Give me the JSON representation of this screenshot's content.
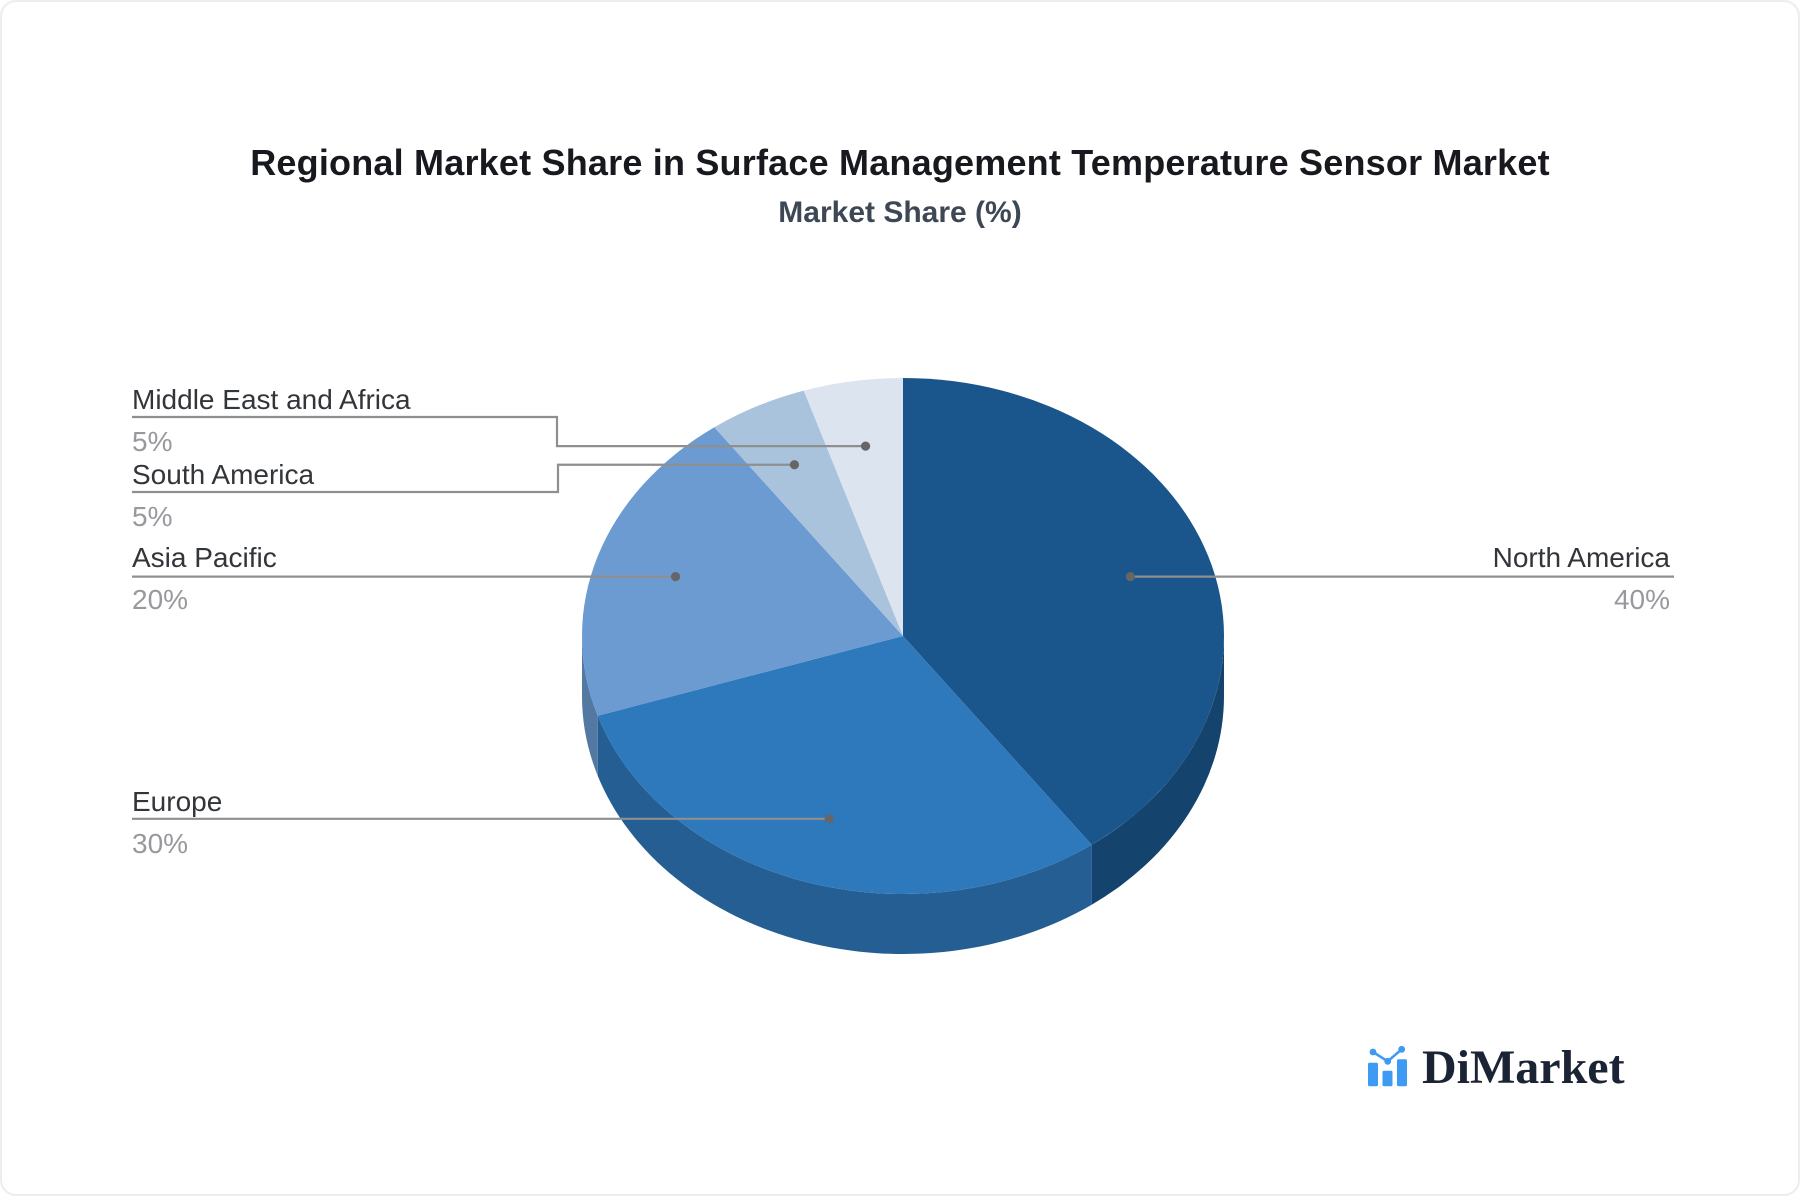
{
  "header": {
    "title": "Regional Market Share in Surface Management Temperature Sensor Market",
    "subtitle": "Market Share (%)"
  },
  "chart_data": {
    "type": "pie",
    "title": "Regional Market Share in Surface Management Temperature Sensor Market",
    "subtitle": "Market Share (%)",
    "unit": "%",
    "style": "3d-pie",
    "start_angle_deg": 0,
    "direction": "clockwise",
    "legend_position": "callout-labels",
    "slices": [
      {
        "label": "North America",
        "value": 40,
        "display": "40%",
        "color": "#1A568C"
      },
      {
        "label": "Europe",
        "value": 30,
        "display": "30%",
        "color": "#2E79BC"
      },
      {
        "label": "Asia Pacific",
        "value": 20,
        "display": "20%",
        "color": "#6B9BD1"
      },
      {
        "label": "South America",
        "value": 5,
        "display": "5%",
        "color": "#A9C3DD"
      },
      {
        "label": "Middle East and Africa",
        "value": 5,
        "display": "5%",
        "color": "#DCE4EF"
      }
    ]
  },
  "branding": {
    "logo_text": "DiMarket",
    "logo_icon": "bar-chart-icon",
    "logo_icon_color": "#3E9BF4",
    "logo_text_color": "#1B2435"
  },
  "colors": {
    "leader_line": "#8f8f8f",
    "leader_dot": "#666666",
    "label_text": "#323539",
    "percent_text": "#97999d",
    "title_text": "#17191e",
    "subtitle_text": "#3e4754"
  }
}
